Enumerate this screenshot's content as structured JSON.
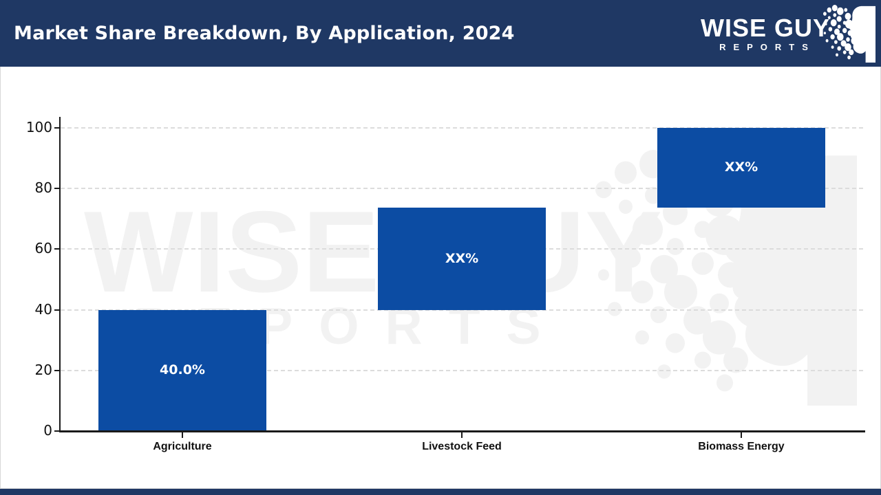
{
  "header": {
    "title": "Market Share Breakdown, By Application, 2024",
    "logo": {
      "line1": "WISE GUY",
      "line2": "REPORTS"
    }
  },
  "watermark": {
    "line1": "WISE GUY",
    "line2": "REPORTS"
  },
  "chart_data": {
    "type": "bar",
    "subtype": "waterfall",
    "title": "Market Share Breakdown, By Application, 2024",
    "categories": [
      "Agriculture",
      "Livestock Feed",
      "Biomass Energy"
    ],
    "segments": [
      {
        "category": "Agriculture",
        "start": 0,
        "end": 40,
        "label": "40.0%"
      },
      {
        "category": "Livestock Feed",
        "start": 40,
        "end": 73.6,
        "label": "XX%"
      },
      {
        "category": "Biomass Energy",
        "start": 73.6,
        "end": 100,
        "label": "XX%"
      }
    ],
    "yticks": [
      0,
      20,
      40,
      60,
      80,
      100
    ],
    "ylim": [
      0,
      105
    ],
    "xlabel": "",
    "ylabel": "",
    "grid": "horizontal-dashed",
    "legend": "none",
    "bar_color": "#0c4ca3",
    "bar_label_color": "#ffffff"
  },
  "colors": {
    "band": "#1f3864",
    "background": "#ffffff",
    "axis": "#1a1a1a",
    "gridline": "#dcdcdc",
    "watermark": "#f2f2f2"
  }
}
